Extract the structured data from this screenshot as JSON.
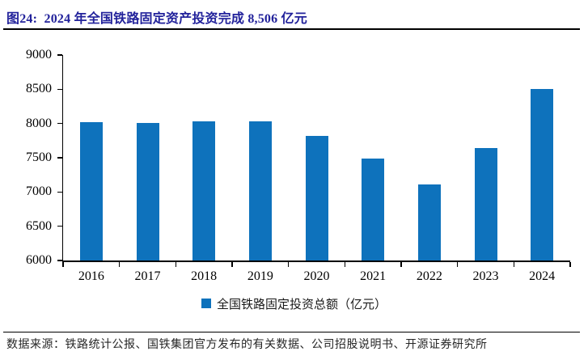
{
  "header": {
    "title": "图24:  2024 年全国铁路固定资产投资完成 8,506 亿元"
  },
  "chart_data": {
    "type": "bar",
    "categories": [
      "2016",
      "2017",
      "2018",
      "2019",
      "2020",
      "2021",
      "2022",
      "2023",
      "2024"
    ],
    "values": [
      8015,
      8010,
      8028,
      8029,
      7819,
      7489,
      7109,
      7645,
      8506
    ],
    "title": "",
    "xlabel": "",
    "ylabel": "",
    "ylim": [
      6000,
      9000
    ],
    "yticks": [
      6000,
      6500,
      7000,
      7500,
      8000,
      8500,
      9000
    ],
    "grid": false,
    "legend_position": "bottom",
    "legend": "全国铁路固定投资总额（亿元）"
  },
  "footer": {
    "source": "数据来源：铁路统计公报、国铁集团官方发布的有关数据、公司招股说明书、开源证券研究所"
  },
  "colors": {
    "bar": "#0E72BC",
    "title_text": "#22229B",
    "axis": "#000000",
    "legend_text": "#1a1a1a",
    "source_text": "#262626"
  }
}
